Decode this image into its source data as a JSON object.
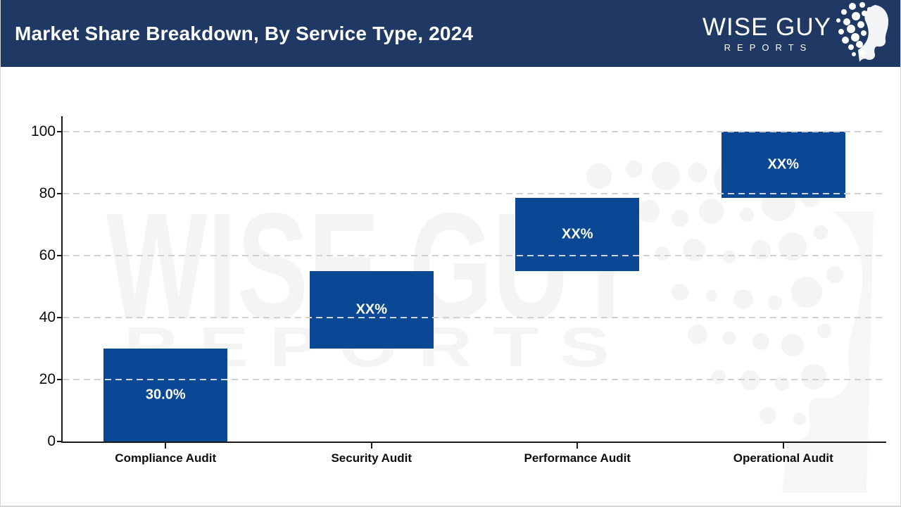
{
  "header": {
    "title": "Market Share Breakdown, By Service Type, 2024",
    "logo": {
      "word": "WISE GUY",
      "sub": "REPORTS"
    }
  },
  "watermark": {
    "word": "WISE GUY",
    "sub_letters": "R E P O R T S"
  },
  "chart_data": {
    "type": "bar",
    "subtype": "stacked-waterfall",
    "title": "Market Share Breakdown, By Service Type, 2024",
    "categories": [
      "Compliance Audit",
      "Security Audit",
      "Performance Audit",
      "Operational Audit"
    ],
    "segments": [
      {
        "category": "Compliance Audit",
        "start": 0,
        "end": 30,
        "label": "30.0%"
      },
      {
        "category": "Security Audit",
        "start": 30,
        "end": 55,
        "label": "XX%"
      },
      {
        "category": "Performance Audit",
        "start": 55,
        "end": 78.7,
        "label": "XX%"
      },
      {
        "category": "Operational Audit",
        "start": 78.7,
        "end": 100,
        "label": "XX%"
      }
    ],
    "yticks": [
      0,
      20,
      40,
      60,
      80,
      100
    ],
    "ylim": [
      0,
      105
    ],
    "xlabel": "",
    "ylabel": "",
    "legend": "none",
    "grid": "horizontal-dashed",
    "colors": {
      "bar": "#0a4795",
      "grid": "#d2d2d2",
      "axis": "#1a1a1a",
      "header": "#1f3864",
      "label_text": "#ffffff"
    }
  }
}
